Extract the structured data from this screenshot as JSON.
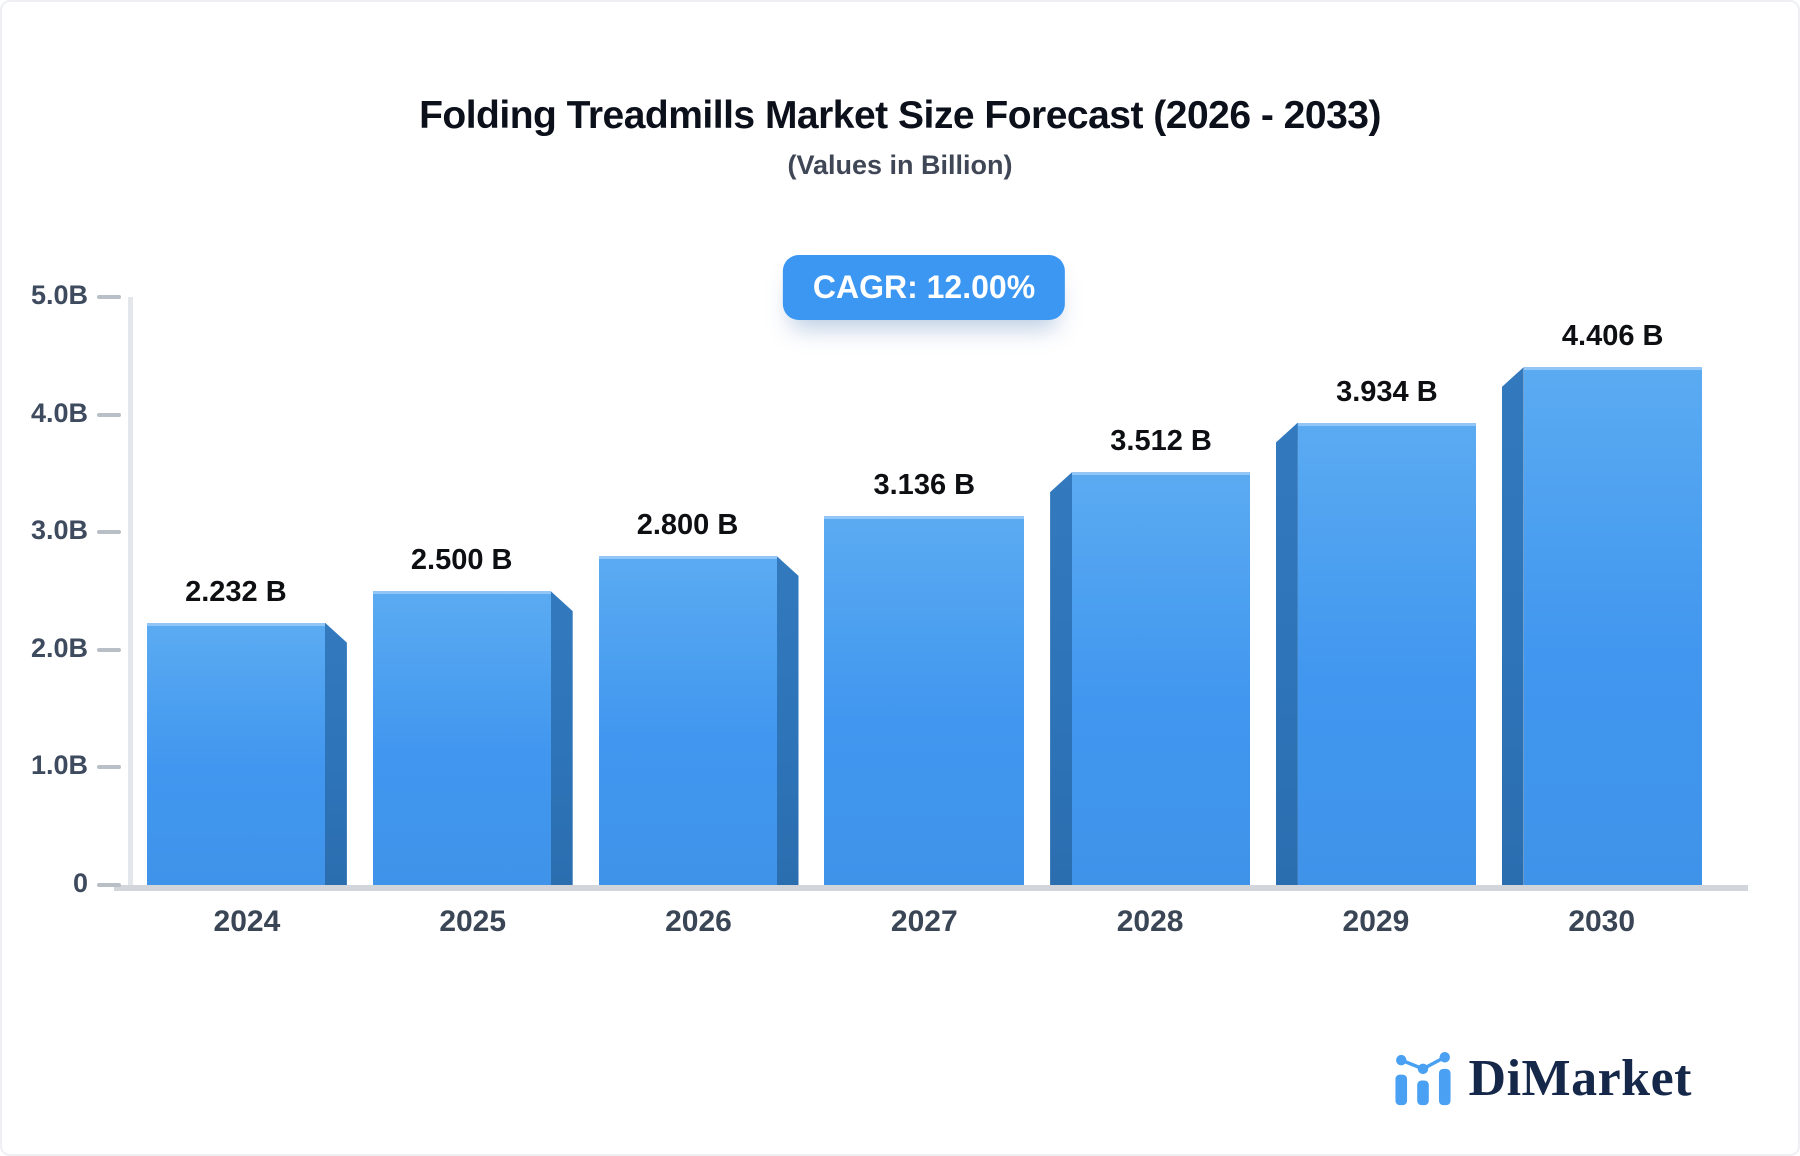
{
  "page": {
    "title": "Folding Treadmills Market Size Forecast (2026 - 2033)",
    "subtitle": "(Values in Billion)",
    "cagr_badge": "CAGR: 12.00%"
  },
  "chart_data": {
    "type": "bar",
    "title": "Folding Treadmills Market Size Forecast (2026 - 2033)",
    "subtitle": "(Values in Billion)",
    "cagr": "12.00%",
    "categories": [
      "2024",
      "2025",
      "2026",
      "2027",
      "2028",
      "2029",
      "2030"
    ],
    "values": [
      2.232,
      2.5,
      2.8,
      3.136,
      3.512,
      3.934,
      4.406
    ],
    "bar_labels": [
      "2.232 B",
      "2.500 B",
      "2.800 B",
      "3.136 B",
      "3.512 B",
      "3.934 B",
      "4.406 B"
    ],
    "ylim": [
      0,
      5
    ],
    "y_ticks": [
      {
        "label": "0",
        "value": 0
      },
      {
        "label": "1.0B",
        "value": 1
      },
      {
        "label": "2.0B",
        "value": 2
      },
      {
        "label": "3.0B",
        "value": 3
      },
      {
        "label": "4.0B",
        "value": 4
      },
      {
        "label": "5.0B",
        "value": 5
      }
    ],
    "grid": false,
    "legend": "none",
    "bar_3d_sides": [
      "right",
      "right",
      "right",
      "none",
      "left",
      "left",
      "left"
    ],
    "colors": {
      "bar_top": "#5babf2",
      "bar_bottom": "#3f93e9",
      "bar_side": "#2d73b7",
      "badge_bg": "#3b97f2",
      "badge_text": "#ffffff",
      "axis_line": "#e3e6ea",
      "baseline": "#d2d6db",
      "tick_dash": "#b9bfc7",
      "tick_text": "#3e4a5e",
      "value_text": "#0d0f12",
      "title_text": "#0b101b",
      "subtitle_text": "#3f4756",
      "logo_blue": "#4aa0f2",
      "logo_navy": "#16284a"
    }
  },
  "branding": {
    "logo_text": "DiMarket",
    "logo_icon": "bar-chart-logo-icon"
  }
}
